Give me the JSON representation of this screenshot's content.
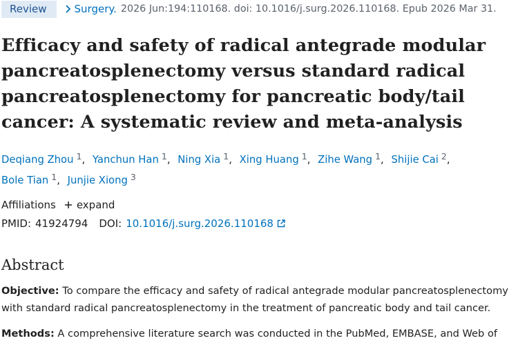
{
  "badge": "Review",
  "citation": {
    "journal": "Surgery.",
    "details": "2026 Jun:194:110168. doi: 10.1016/j.surg.2026.110168. Epub 2026 Mar 31."
  },
  "title": "Efficacy and safety of radical antegrade modular pancreatosplenectomy versus standard radical pancreatosplenectomy for pancreatic body/tail cancer: A systematic review and meta-analysis",
  "authors": {
    "separator": ",",
    "list": [
      {
        "name": "Deqiang Zhou",
        "affiliation": "1"
      },
      {
        "name": "Yanchun Han",
        "affiliation": "1"
      },
      {
        "name": "Ning Xia",
        "affiliation": "1"
      },
      {
        "name": "Xing Huang",
        "affiliation": "1"
      },
      {
        "name": "Zihe Wang",
        "affiliation": "1"
      },
      {
        "name": "Shijie Cai",
        "affiliation": "2"
      },
      {
        "name": "Bole Tian",
        "affiliation": "1"
      },
      {
        "name": "Junjie Xiong",
        "affiliation": "3"
      }
    ]
  },
  "affiliations": {
    "label": "Affiliations",
    "expand": "expand"
  },
  "identifiers": {
    "pmid_label": "PMID:",
    "pmid": "41924794",
    "doi_label": "DOI:",
    "doi": "10.1016/j.surg.2026.110168"
  },
  "abstract": {
    "heading": "Abstract",
    "sections": [
      {
        "label": "Objective:",
        "text": "To compare the efficacy and safety of radical antegrade modular pancreatosplenectomy with standard radical pancreatosplenectomy in the treatment of pancreatic body and tail cancer."
      },
      {
        "label": "Methods:",
        "text": "A comprehensive literature search was conducted in the PubMed, EMBASE, and Web of"
      }
    ]
  }
}
